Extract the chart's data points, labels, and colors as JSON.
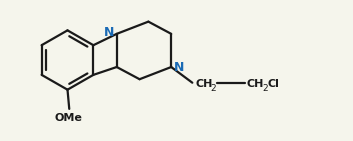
{
  "bg_color": "#f5f5ec",
  "line_color": "#1a1a1a",
  "N_color": "#1a6ab5",
  "text_color": "#1a1a1a",
  "lw": 1.6,
  "figsize": [
    3.53,
    1.41
  ],
  "dpi": 100,
  "xlim": [
    0,
    10
  ],
  "ylim": [
    0,
    4
  ]
}
